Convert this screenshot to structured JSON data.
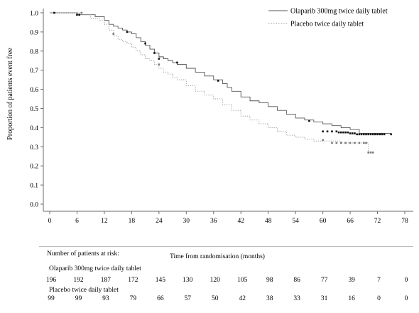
{
  "chart_data": {
    "type": "line",
    "xlabel": "Time from randomisation (months)",
    "ylabel": "Proportion of patients event free",
    "xlim": [
      0,
      78
    ],
    "ylim": [
      0,
      1.0
    ],
    "x_ticks": [
      0,
      6,
      12,
      18,
      24,
      30,
      36,
      42,
      48,
      54,
      60,
      66,
      72,
      78
    ],
    "y_ticks": [
      "0.0",
      "0.1",
      "0.2",
      "0.3",
      "0.4",
      "0.5",
      "0.6",
      "0.7",
      "0.8",
      "0.9",
      "1.0"
    ],
    "grid": false,
    "legend_position": "top-right",
    "series": [
      {
        "name": "Olaparib 300mg twice daily tablet",
        "color": "#555555",
        "line_style": "solid",
        "x": [
          0,
          5,
          6,
          8,
          10,
          12,
          13,
          14,
          15,
          16,
          17,
          18,
          19,
          20,
          21,
          22,
          23,
          24,
          25,
          26,
          27,
          28,
          30,
          32,
          34,
          36,
          38,
          39,
          40,
          42,
          44,
          46,
          48,
          50,
          52,
          54,
          56,
          58,
          60,
          62,
          64,
          66,
          68,
          70,
          72,
          75
        ],
        "y": [
          1.0,
          1.0,
          0.99,
          0.99,
          0.98,
          0.96,
          0.94,
          0.93,
          0.92,
          0.91,
          0.9,
          0.89,
          0.87,
          0.85,
          0.83,
          0.81,
          0.79,
          0.77,
          0.76,
          0.75,
          0.74,
          0.73,
          0.71,
          0.69,
          0.67,
          0.65,
          0.63,
          0.61,
          0.59,
          0.56,
          0.54,
          0.53,
          0.51,
          0.49,
          0.47,
          0.45,
          0.44,
          0.43,
          0.42,
          0.41,
          0.4,
          0.39,
          0.37,
          0.37,
          0.37,
          0.37
        ]
      },
      {
        "name": "Placebo twice daily tablet",
        "color": "#9a9a9a",
        "line_style": "dotted",
        "x": [
          0,
          5,
          7,
          9,
          11,
          12,
          13,
          14,
          15,
          16,
          17,
          18,
          19,
          20,
          21,
          22,
          23,
          24,
          25,
          26,
          27,
          28,
          30,
          32,
          34,
          36,
          38,
          40,
          42,
          44,
          46,
          48,
          50,
          52,
          54,
          56,
          58,
          60,
          62,
          64,
          66,
          68,
          69,
          70,
          71
        ],
        "y": [
          1.0,
          1.0,
          0.99,
          0.97,
          0.96,
          0.94,
          0.91,
          0.88,
          0.86,
          0.85,
          0.84,
          0.82,
          0.8,
          0.78,
          0.76,
          0.75,
          0.73,
          0.71,
          0.69,
          0.68,
          0.66,
          0.65,
          0.62,
          0.59,
          0.57,
          0.55,
          0.52,
          0.49,
          0.46,
          0.44,
          0.42,
          0.4,
          0.38,
          0.36,
          0.35,
          0.34,
          0.33,
          0.33,
          0.33,
          0.32,
          0.32,
          0.32,
          0.32,
          0.27,
          0.27
        ]
      }
    ],
    "censor_marks": {
      "olaparib": {
        "x": [
          1,
          6,
          6.5,
          17,
          21,
          23,
          24,
          28,
          37,
          57,
          60,
          61,
          62,
          63,
          63.5,
          64,
          64.5,
          65,
          65.5,
          66,
          66.5,
          67,
          67.5,
          68,
          68.5,
          69,
          69.5,
          70,
          70.5,
          71,
          71.5,
          72,
          72.5,
          73,
          73.5,
          75
        ],
        "y": [
          1.0,
          0.99,
          0.99,
          0.9,
          0.84,
          0.79,
          0.76,
          0.74,
          0.645,
          0.435,
          0.38,
          0.38,
          0.38,
          0.38,
          0.375,
          0.375,
          0.375,
          0.375,
          0.375,
          0.37,
          0.37,
          0.37,
          0.365,
          0.365,
          0.365,
          0.365,
          0.365,
          0.365,
          0.365,
          0.365,
          0.365,
          0.365,
          0.365,
          0.365,
          0.365,
          0.365
        ]
      },
      "placebo": {
        "x": [
          7,
          14,
          24,
          60,
          62,
          63,
          64,
          65,
          66,
          67,
          68,
          69,
          69.5,
          70,
          70.5,
          71
        ],
        "y": [
          1.0,
          0.89,
          0.73,
          0.335,
          0.32,
          0.32,
          0.32,
          0.32,
          0.32,
          0.32,
          0.32,
          0.32,
          0.32,
          0.27,
          0.27,
          0.27
        ]
      }
    }
  },
  "risk_table": {
    "title": "Number of patients at risk:",
    "xlabel": "Time from randomisation (months)",
    "groups": [
      {
        "name": "Olaparib 300mg twice daily tablet",
        "counts": [
          "196",
          "192",
          "187",
          "172",
          "145",
          "130",
          "120",
          "105",
          "98",
          "86",
          "77",
          "39",
          "7",
          "0"
        ]
      },
      {
        "name": "Placebo twice daily tablet",
        "counts": [
          "99",
          "99",
          "93",
          "79",
          "66",
          "57",
          "50",
          "42",
          "38",
          "33",
          "31",
          "16",
          "0",
          "0"
        ]
      }
    ]
  }
}
